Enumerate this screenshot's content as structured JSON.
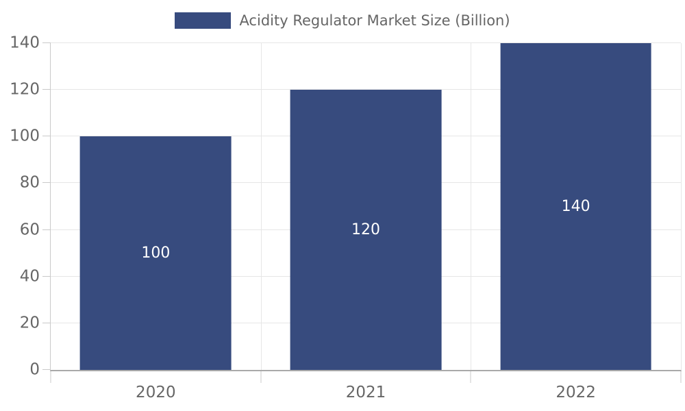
{
  "chart_data": {
    "type": "bar",
    "title": "Acidity Regulator Market Size (Billion)",
    "legend_entries": [
      "Acidity Regulator Market Size (Billion)"
    ],
    "legend_position": "top-center",
    "categories": [
      "2020",
      "2021",
      "2022"
    ],
    "values": [
      100,
      120,
      140
    ],
    "value_labels": [
      "100",
      "120",
      "140"
    ],
    "xlabel": "",
    "ylabel": "",
    "ylim": [
      0,
      140
    ],
    "yticks": [
      0,
      20,
      40,
      60,
      80,
      100,
      120,
      140
    ],
    "grid": true,
    "colors": {
      "bar": "#374B7E",
      "value_label": "#FFFFFF",
      "axis_text": "#666666",
      "legend_text": "#666666",
      "gridline": "#E6E6E6",
      "axis_line": "#A9A9A9",
      "tick_line": "#C9C9C9",
      "background": "#FFFFFF"
    }
  }
}
